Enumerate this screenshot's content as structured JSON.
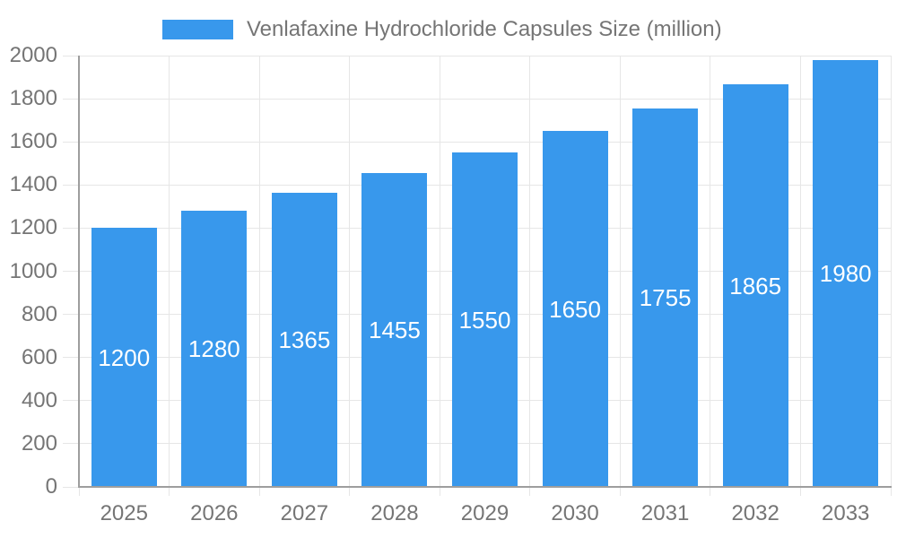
{
  "chart_data": {
    "type": "bar",
    "title": "",
    "legend_label": "Venlafaxine Hydrochloride Capsules Size (million)",
    "legend_position": "top",
    "categories": [
      "2025",
      "2026",
      "2027",
      "2028",
      "2029",
      "2030",
      "2031",
      "2032",
      "2033"
    ],
    "values": [
      1200,
      1280,
      1365,
      1455,
      1550,
      1650,
      1755,
      1865,
      1980
    ],
    "bar_labels": [
      "1200",
      "1280",
      "1365",
      "1455",
      "1550",
      "1650",
      "1755",
      "1865",
      "1980"
    ],
    "xlabel": "",
    "ylabel": "",
    "ylim": [
      0,
      2000
    ],
    "yticks": [
      0,
      200,
      400,
      600,
      800,
      1000,
      1200,
      1400,
      1600,
      1800,
      2000
    ],
    "grid": true,
    "colors": {
      "bar": "#3898ec",
      "grid": "#e6e6e6",
      "axis": "#9e9e9e",
      "tick_text": "#757575",
      "bar_label": "#ffffff",
      "background": "#ffffff"
    }
  }
}
